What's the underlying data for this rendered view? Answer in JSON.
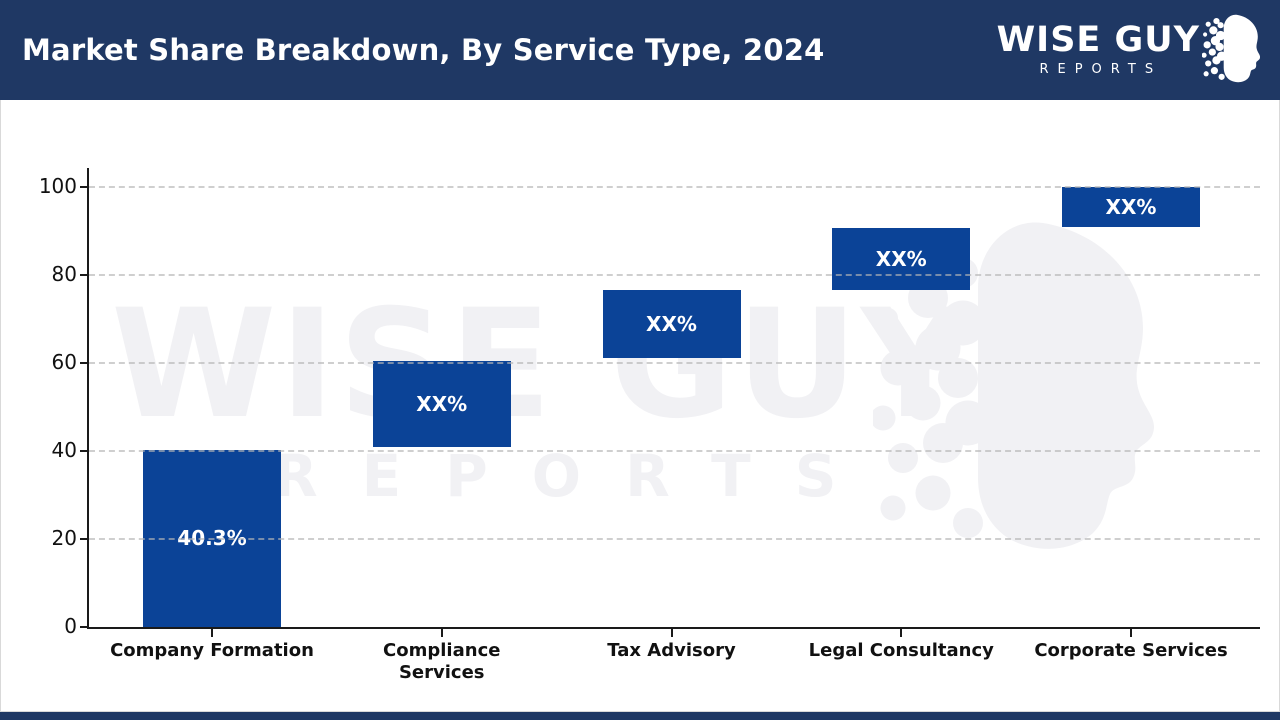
{
  "header": {
    "title": "Market Share Breakdown, By Service Type, 2024",
    "bg_color": "#1f3864"
  },
  "logo": {
    "main": "WISE GUY",
    "sub": "REPORTS"
  },
  "watermark": {
    "line1": "WISE GUY",
    "line2": "REPORTS"
  },
  "chart_data": {
    "type": "bar",
    "subtype": "waterfall",
    "title": "Market Share Breakdown, By Service Type, 2024",
    "categories": [
      "Company Formation",
      "Compliance\nServices",
      "Tax Advisory",
      "Legal Consultancy",
      "Corporate Services"
    ],
    "bars": [
      {
        "category": "Company Formation",
        "start": 0,
        "end": 40.3,
        "label": "40.3%"
      },
      {
        "category": "Compliance Services",
        "start": 40.8,
        "end": 60.5,
        "label": "XX%"
      },
      {
        "category": "Tax Advisory",
        "start": 61.2,
        "end": 76.6,
        "label": "XX%"
      },
      {
        "category": "Legal Consultancy",
        "start": 76.7,
        "end": 90.6,
        "label": "XX%"
      },
      {
        "category": "Corporate Services",
        "start": 90.8,
        "end": 100.1,
        "label": "XX%"
      }
    ],
    "yticks": [
      0,
      20,
      40,
      60,
      80,
      100
    ],
    "ylim": [
      0,
      105
    ],
    "xlabel": "",
    "ylabel": "",
    "grid": true,
    "grid_style": "dashed",
    "bar_color": "#0b4397",
    "axis_color": "#1a1a1a",
    "value_label_color": "#ffffff"
  }
}
